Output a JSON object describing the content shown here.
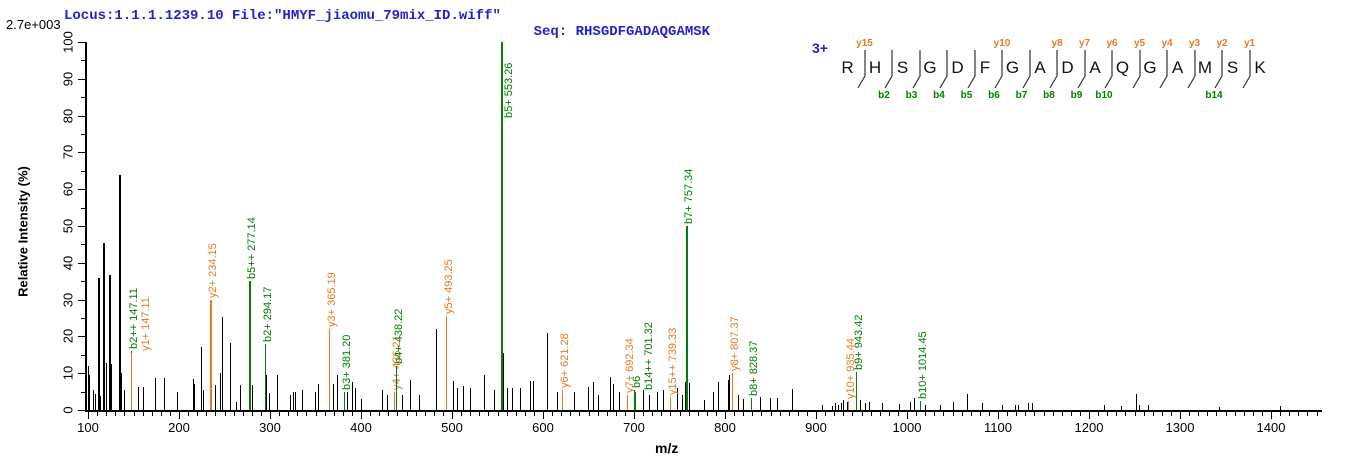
{
  "header": {
    "locus_file": "Locus:1.1.1.1239.10 File:\"HMYF_jiaomu_79mix_ID.wiff\"",
    "seq_prefix": "Seq: ",
    "sequence": "RHSGDFGADAQGAMSK",
    "max_intensity_label": "2.7e+003"
  },
  "colors": {
    "header_blue": "#2222CC",
    "b_ion_green": "#008000",
    "y_ion_orange": "#E87A21",
    "axis_black": "#000000"
  },
  "fragment_map": {
    "charge_label": "3+",
    "residues": [
      "R",
      "H",
      "S",
      "G",
      "D",
      "F",
      "G",
      "A",
      "D",
      "A",
      "Q",
      "G",
      "A",
      "M",
      "S",
      "K"
    ],
    "y_ions": [
      {
        "label": "y15",
        "boundary": 1
      },
      {
        "label": "y10",
        "boundary": 6
      },
      {
        "label": "y8",
        "boundary": 8
      },
      {
        "label": "y7",
        "boundary": 9
      },
      {
        "label": "y6",
        "boundary": 10
      },
      {
        "label": "y5",
        "boundary": 11
      },
      {
        "label": "y4",
        "boundary": 12
      },
      {
        "label": "y3",
        "boundary": 13
      },
      {
        "label": "y2",
        "boundary": 14
      },
      {
        "label": "y1",
        "boundary": 15
      }
    ],
    "b_ions": [
      {
        "label": "b2",
        "boundary": 2
      },
      {
        "label": "b3",
        "boundary": 3
      },
      {
        "label": "b4",
        "boundary": 4
      },
      {
        "label": "b5",
        "boundary": 5
      },
      {
        "label": "b6",
        "boundary": 6
      },
      {
        "label": "b7",
        "boundary": 7
      },
      {
        "label": "b8",
        "boundary": 8
      },
      {
        "label": "b9",
        "boundary": 9
      },
      {
        "label": "b10",
        "boundary": 10
      },
      {
        "label": "b14",
        "boundary": 14
      }
    ]
  },
  "chart_data": {
    "type": "bar",
    "subtype": "mass-spectrum",
    "xlabel": "m/z",
    "ylabel": "Relative Intensity (%)",
    "xlim": [
      96.7,
      1456
    ],
    "ylim": [
      0,
      100
    ],
    "x_ticks_major": [
      100,
      200,
      300,
      400,
      500,
      600,
      700,
      800,
      900,
      1000,
      1100,
      1200,
      1300,
      1400
    ],
    "x_tick_minor_step": 10,
    "y_ticks_major": [
      0,
      10,
      20,
      30,
      40,
      50,
      60,
      70,
      80,
      90,
      100
    ],
    "y_tick_minor_step": 5,
    "grid": false,
    "labeled_peaks": [
      {
        "label": "b2++ 147.11",
        "ion": "b",
        "mz": 147.11,
        "intensity": 16
      },
      {
        "label": "y1+ 147.11",
        "ion": "y",
        "mz": 147.11,
        "intensity": 15.5,
        "label_dx": 12
      },
      {
        "label": "y2+ 234.15",
        "ion": "y",
        "mz": 234.15,
        "intensity": 30
      },
      {
        "label": "b5++ 277.14",
        "ion": "b",
        "mz": 277.14,
        "intensity": 35
      },
      {
        "label": "b2+ 294.17",
        "ion": "b",
        "mz": 294.17,
        "intensity": 18
      },
      {
        "label": "y3+ 365.19",
        "ion": "y",
        "mz": 365.19,
        "intensity": 22
      },
      {
        "label": "b3+ 381.20",
        "ion": "b",
        "mz": 381.2,
        "intensity": 5
      },
      {
        "label": "y4+ 436.21",
        "ion": "y",
        "mz": 436.21,
        "intensity": 5
      },
      {
        "label": "b4+ 438.22",
        "ion": "b",
        "mz": 438.22,
        "intensity": 12
      },
      {
        "label": "y5+ 493.25",
        "ion": "y",
        "mz": 493.25,
        "intensity": 25.5
      },
      {
        "label": "b5+ 553.26",
        "ion": "b",
        "mz": 553.26,
        "intensity": 100,
        "label_mode": "side"
      },
      {
        "label": "y6+ 621.28",
        "ion": "y",
        "mz": 621.28,
        "intensity": 5.5
      },
      {
        "label": "y7+ 692.34",
        "ion": "y",
        "mz": 692.34,
        "intensity": 4
      },
      {
        "label": "b6",
        "ion": "b",
        "mz": 700.33,
        "intensity": 5.5
      },
      {
        "label": "b14++ 701.32",
        "ion": "b",
        "mz": 701.32,
        "intensity": 5,
        "label_dx": 11
      },
      {
        "label": "y15++ 739.33",
        "ion": "y",
        "mz": 739.33,
        "intensity": 3.5
      },
      {
        "label": "b7+ 757.34",
        "ion": "b",
        "mz": 757.34,
        "intensity": 50
      },
      {
        "label": "y8+ 807.37",
        "ion": "y",
        "mz": 807.37,
        "intensity": 10
      },
      {
        "label": "b8+ 828.37",
        "ion": "b",
        "mz": 828.37,
        "intensity": 3.2
      },
      {
        "label": "y10+ 935.44",
        "ion": "y",
        "mz": 935.44,
        "intensity": 2.5
      },
      {
        "label": "b9+ 943.42",
        "ion": "b",
        "mz": 943.42,
        "intensity": 10.4
      },
      {
        "label": "b10+ 1014.45",
        "ion": "b",
        "mz": 1014.45,
        "intensity": 2.5
      }
    ],
    "background_peaks": [
      [
        100,
        12
      ],
      [
        101.5,
        9.5
      ],
      [
        105,
        5.4
      ],
      [
        108,
        4.3
      ],
      [
        110.6,
        35.8
      ],
      [
        113.5,
        3.8
      ],
      [
        116.8,
        45.3
      ],
      [
        120,
        12.9
      ],
      [
        122.7,
        36.7
      ],
      [
        125.3,
        12.5
      ],
      [
        133.7,
        63.9
      ],
      [
        136.3,
        10
      ],
      [
        140,
        5.4
      ],
      [
        154.6,
        6.3
      ],
      [
        160,
        6.3
      ],
      [
        173.5,
        8.7
      ],
      [
        183.7,
        8.7
      ],
      [
        198,
        5
      ],
      [
        214.8,
        8.5
      ],
      [
        216.2,
        7
      ],
      [
        223.6,
        17
      ],
      [
        226.4,
        5.5
      ],
      [
        239.3,
        6.8
      ],
      [
        244.7,
        10
      ],
      [
        247.3,
        25.3
      ],
      [
        255.7,
        18.2
      ],
      [
        263,
        2.2
      ],
      [
        266.7,
        6.8
      ],
      [
        280.6,
        6.8
      ],
      [
        296,
        9.5
      ],
      [
        298.8,
        4.6
      ],
      [
        307.6,
        9.5
      ],
      [
        321.5,
        4
      ],
      [
        325,
        5
      ],
      [
        327.3,
        5
      ],
      [
        335.4,
        5.5
      ],
      [
        349.7,
        5
      ],
      [
        352.6,
        7
      ],
      [
        369,
        7
      ],
      [
        373.8,
        9.6
      ],
      [
        384.8,
        5
      ],
      [
        389.9,
        7.5
      ],
      [
        392.8,
        6
      ],
      [
        400,
        3
      ],
      [
        422.7,
        5.5
      ],
      [
        428.6,
        4
      ],
      [
        445,
        4
      ],
      [
        453.8,
        8.2
      ],
      [
        464,
        4
      ],
      [
        482,
        22
      ],
      [
        500.6,
        8
      ],
      [
        505,
        6
      ],
      [
        512,
        6.5
      ],
      [
        520,
        6
      ],
      [
        535,
        9.5
      ],
      [
        546.3,
        5.4
      ],
      [
        556.5,
        15.5
      ],
      [
        560.5,
        6
      ],
      [
        566,
        6
      ],
      [
        575,
        6
      ],
      [
        586,
        8
      ],
      [
        589.4,
        8
      ],
      [
        604.8,
        21
      ],
      [
        615,
        5
      ],
      [
        634,
        5
      ],
      [
        649.9,
        6.3
      ],
      [
        655.4,
        7.7
      ],
      [
        660,
        4
      ],
      [
        673.7,
        9
      ],
      [
        677,
        7
      ],
      [
        683,
        5
      ],
      [
        710,
        5.4
      ],
      [
        716.5,
        4
      ],
      [
        725,
        5
      ],
      [
        732.3,
        5.4
      ],
      [
        747.3,
        6
      ],
      [
        753,
        4
      ],
      [
        755.8,
        7.7
      ],
      [
        760.8,
        7.3
      ],
      [
        777,
        2.7
      ],
      [
        787.2,
        5
      ],
      [
        792.7,
        7.7
      ],
      [
        803.7,
        8.2
      ],
      [
        804.8,
        9.5
      ],
      [
        814.7,
        4
      ],
      [
        820,
        3
      ],
      [
        838.5,
        3.6
      ],
      [
        849.5,
        3.4
      ],
      [
        857,
        3.4
      ],
      [
        873.4,
        5.7
      ],
      [
        906.3,
        1.4
      ],
      [
        917.6,
        1
      ],
      [
        921,
        2
      ],
      [
        924,
        1.4
      ],
      [
        927,
        1.8
      ],
      [
        929.5,
        2.7
      ],
      [
        933.9,
        2.3
      ],
      [
        948.6,
        2.7
      ],
      [
        954,
        1.8
      ],
      [
        958,
        2.3
      ],
      [
        972,
        2
      ],
      [
        990.7,
        1.6
      ],
      [
        1003.6,
        2.3
      ],
      [
        1007.3,
        3.2
      ],
      [
        1020,
        1.5
      ],
      [
        1036.3,
        1.5
      ],
      [
        1051,
        2.3
      ],
      [
        1065.7,
        4.3
      ],
      [
        1082.2,
        1.8
      ],
      [
        1104.8,
        1.3
      ],
      [
        1118.7,
        1.5
      ],
      [
        1122.3,
        1.3
      ],
      [
        1133.3,
        1.8
      ],
      [
        1137,
        2
      ],
      [
        1216.9,
        1.5
      ],
      [
        1235.3,
        1
      ],
      [
        1251.8,
        4.3
      ],
      [
        1255,
        1.5
      ],
      [
        1265.3,
        1.3
      ],
      [
        1343.3,
        0.8
      ],
      [
        1410,
        1
      ]
    ]
  }
}
